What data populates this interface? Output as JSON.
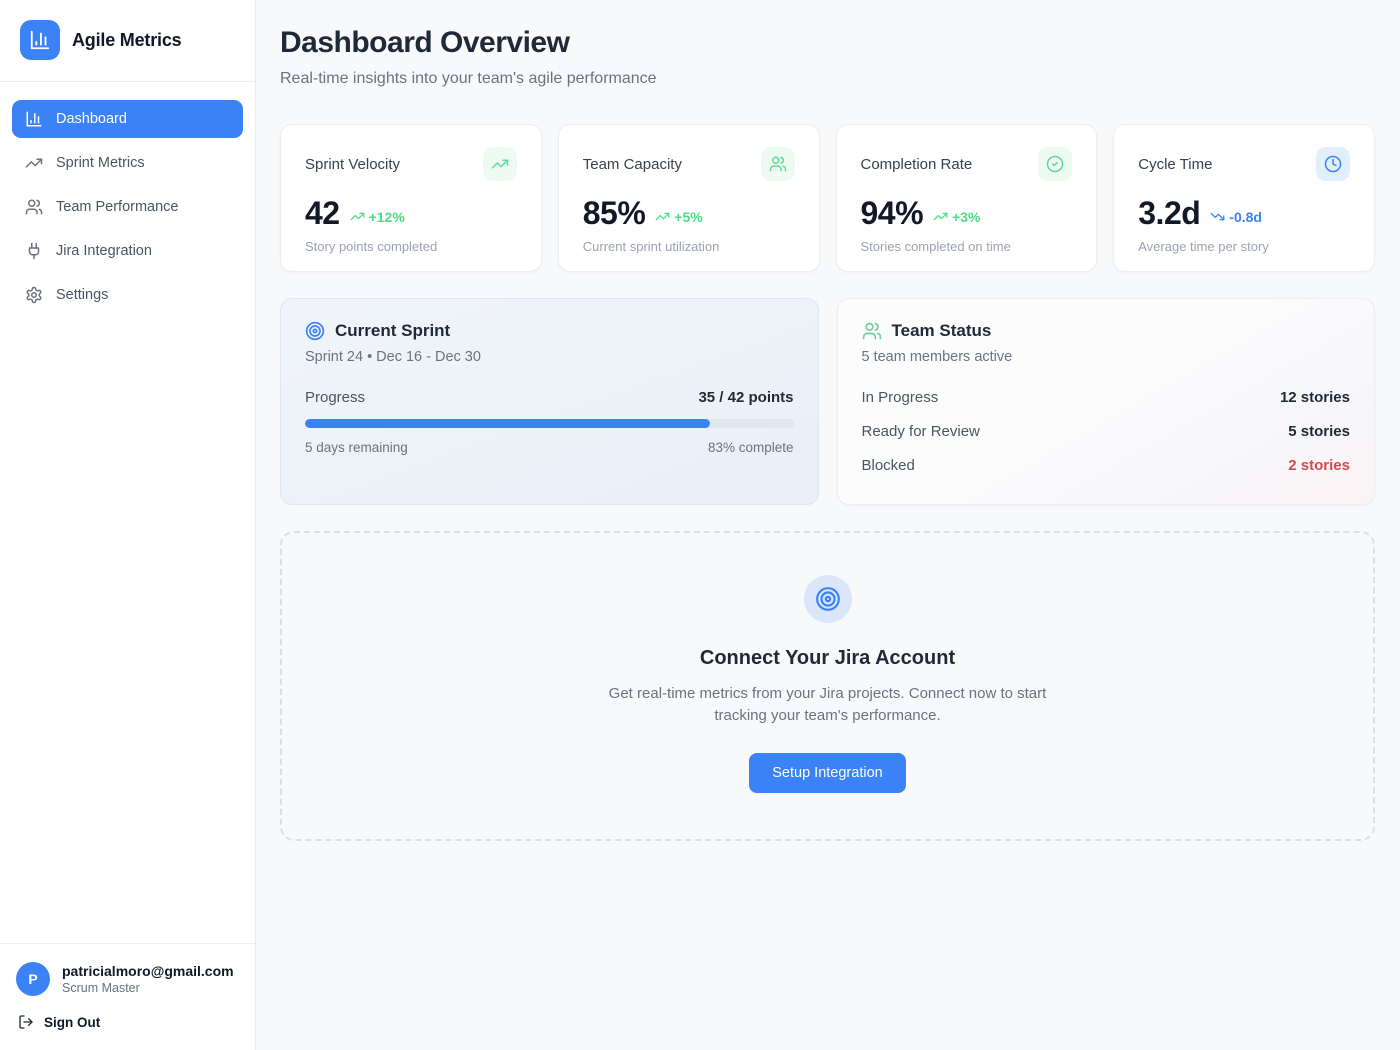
{
  "brand": {
    "name": "Agile Metrics"
  },
  "sidebar": {
    "items": [
      {
        "label": "Dashboard",
        "icon": "bar-chart-icon",
        "active": true
      },
      {
        "label": "Sprint Metrics",
        "icon": "trending-up-icon",
        "active": false
      },
      {
        "label": "Team Performance",
        "icon": "users-icon",
        "active": false
      },
      {
        "label": "Jira Integration",
        "icon": "plug-icon",
        "active": false
      },
      {
        "label": "Settings",
        "icon": "gear-icon",
        "active": false
      }
    ]
  },
  "header": {
    "title": "Dashboard Overview",
    "subtitle": "Real-time insights into your team's agile performance"
  },
  "stats": {
    "cards": [
      {
        "label": "Sprint Velocity",
        "value": "42",
        "change": "+12%",
        "trend": "up",
        "sublabel": "Story points completed",
        "icon": "trending-up-icon",
        "accent": "#4ade80"
      },
      {
        "label": "Team Capacity",
        "value": "85%",
        "change": "+5%",
        "trend": "up",
        "sublabel": "Current sprint utilization",
        "icon": "users-icon",
        "accent": "#4ade80"
      },
      {
        "label": "Completion Rate",
        "value": "94%",
        "change": "+3%",
        "trend": "up",
        "sublabel": "Stories completed on time",
        "icon": "check-circle-icon",
        "accent": "#4ade80"
      },
      {
        "label": "Cycle Time",
        "value": "3.2d",
        "change": "-0.8d",
        "trend": "down",
        "sublabel": "Average time per story",
        "icon": "clock-icon",
        "accent": "#3b82f6"
      }
    ]
  },
  "current_sprint": {
    "title": "Current Sprint",
    "subtitle": "Sprint 24 • Dec 16 - Dec 30",
    "progress_label": "Progress",
    "progress_value": "35 / 42 points",
    "progress_percent": 83,
    "days_remaining": "5 days remaining",
    "complete_label": "83% complete"
  },
  "team_status": {
    "title": "Team Status",
    "subtitle": "5 team members active",
    "rows": [
      {
        "label": "In Progress",
        "value": "12 stories",
        "color": "#1f2937"
      },
      {
        "label": "Ready for Review",
        "value": "5 stories",
        "color": "#1f2937"
      },
      {
        "label": "Blocked",
        "value": "2 stories",
        "color": "#d9494f"
      }
    ]
  },
  "jira_cta": {
    "title": "Connect Your Jira Account",
    "description": "Get real-time metrics from your Jira projects. Connect now to start tracking your team's performance.",
    "button_label": "Setup Integration"
  },
  "user": {
    "avatar_initial": "P",
    "email": "patricialmoro@gmail.com",
    "role": "Scrum Master",
    "sign_out_label": "Sign Out"
  },
  "colors": {
    "primary": "#3b82f6",
    "success": "#4ade80",
    "danger": "#d9494f"
  }
}
